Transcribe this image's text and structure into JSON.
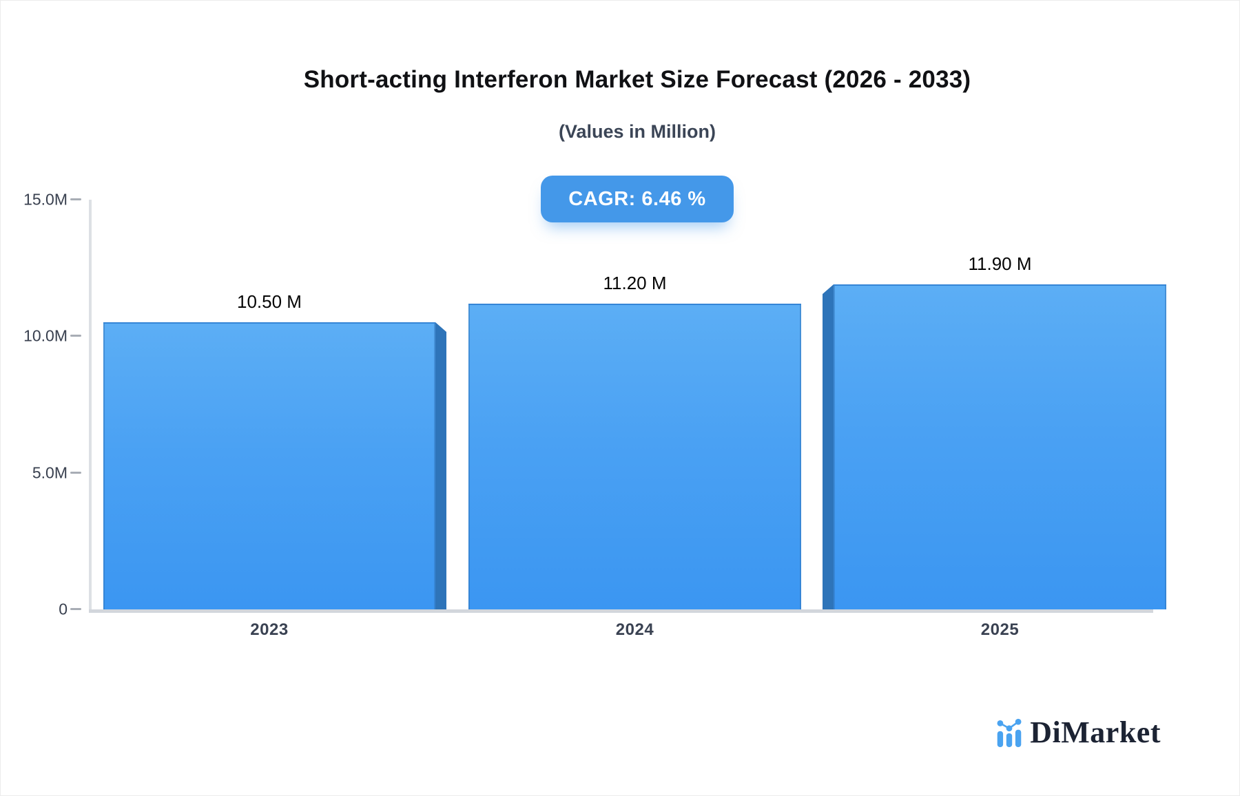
{
  "header": {
    "title": "Short-acting Interferon Market Size Forecast (2026 - 2033)",
    "subtitle": "(Values in Million)",
    "cagr_label": "CAGR: 6.46 %"
  },
  "chart_data": {
    "type": "bar",
    "categories": [
      "2023",
      "2024",
      "2025"
    ],
    "values": [
      10.5,
      11.2,
      11.9
    ],
    "value_labels": [
      "10.50 M",
      "11.20 M",
      "11.90 M"
    ],
    "title": "Short-acting Interferon Market Size Forecast (2026 - 2033)",
    "subtitle": "(Values in Million)",
    "xlabel": "",
    "ylabel": "",
    "ylim": [
      0,
      15
    ],
    "yticks": [
      {
        "value": 0,
        "label": "0"
      },
      {
        "value": 5,
        "label": "5.0M"
      },
      {
        "value": 10,
        "label": "10.0M"
      },
      {
        "value": 15,
        "label": "15.0M"
      }
    ],
    "grid": false,
    "legend": false,
    "bar_color_top": "#5caef5",
    "bar_color_bottom": "#3b96f2",
    "bar_bevel_color": "#2e74b9"
  },
  "colors": {
    "accent": "#4498e9",
    "axis_text": "#39404f",
    "axis_line": "#d2d6dc",
    "value_text": "#050505",
    "brand_blue": "#4aa3f0",
    "brand_text": "#1c2333"
  },
  "brand": {
    "name": "DiMarket",
    "icon": "mini-bar-chart-logo-icon"
  }
}
